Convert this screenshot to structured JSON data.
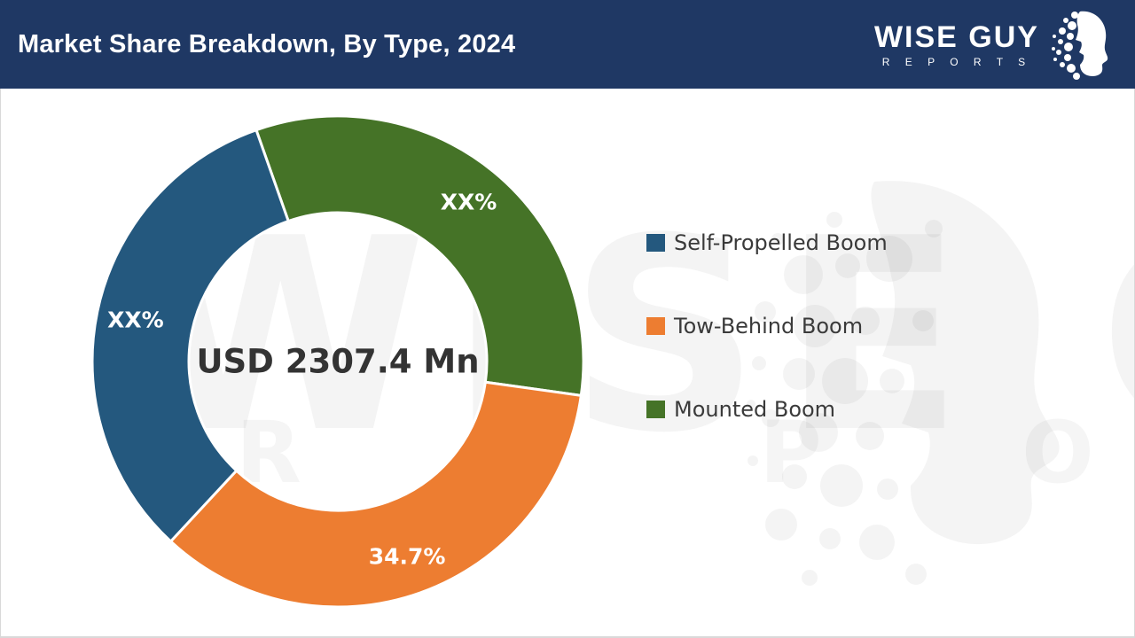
{
  "header": {
    "title": "Market Share Breakdown, By Type, 2024",
    "bg_color": "#1f3864",
    "logo": {
      "brand": "WISE GUY",
      "sub": "R E P O R T S"
    }
  },
  "chart_data": {
    "type": "pie",
    "subtype": "donut",
    "title": "Market Share Breakdown, By Type, 2024",
    "center_label": "USD 2307.4 Mn",
    "units": "percent share of market",
    "start_angle_deg": -19.4,
    "slices": [
      {
        "label": "Mounted Boom",
        "value": 32.6,
        "display": "XX%",
        "color": "#457327"
      },
      {
        "label": "Tow-Behind Boom",
        "value": 34.7,
        "display": "34.7%",
        "color": "#ed7d31"
      },
      {
        "label": "Self-Propelled Boom",
        "value": 32.7,
        "display": "XX%",
        "color": "#24587e"
      }
    ],
    "legend": {
      "position": "right",
      "items": [
        {
          "label": "Self-Propelled Boom",
          "color": "#24587e"
        },
        {
          "label": "Tow-Behind Boom",
          "color": "#ed7d31"
        },
        {
          "label": "Mounted Boom",
          "color": "#457327"
        }
      ]
    }
  },
  "watermark": {
    "line1": "WISE GUY",
    "line2": "R E P O R T S"
  }
}
